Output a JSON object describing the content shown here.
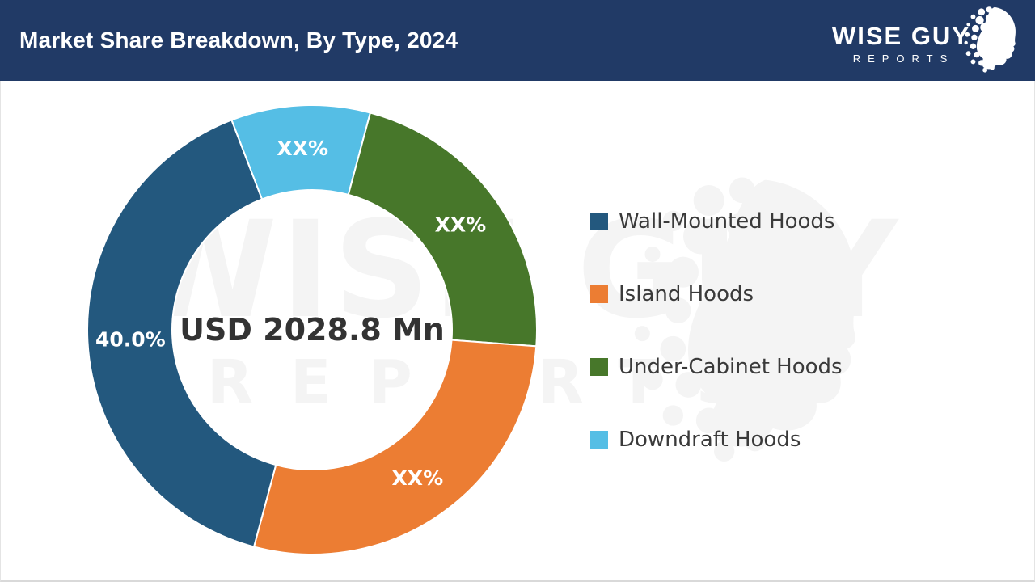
{
  "header": {
    "title": "Market Share Breakdown, By Type, 2024",
    "logo": {
      "line1": "WISE GUY",
      "line2": "REPORTS"
    }
  },
  "watermark": {
    "line1": "WISE GUY",
    "line2": "REPORTS"
  },
  "chart_data": {
    "type": "pie",
    "subtype": "donut",
    "title": "Market Share Breakdown, By Type, 2024",
    "center_label": "USD 2028.8 Mn",
    "start_angle_deg": -21,
    "legend_position": "right",
    "slices": [
      {
        "name": "Wall-Mounted Hoods",
        "value_pct_est": 40.0,
        "display_label": "40.0%",
        "color": "#23587E"
      },
      {
        "name": "Island Hoods",
        "value_pct_est": 28.0,
        "display_label": "XX%",
        "color": "#EC7D33"
      },
      {
        "name": "Under-Cabinet Hoods",
        "value_pct_est": 22.0,
        "display_label": "XX%",
        "color": "#47772A"
      },
      {
        "name": "Downdraft Hoods",
        "value_pct_est": 10.0,
        "display_label": "XX%",
        "color": "#55BEE5"
      }
    ]
  },
  "colors": {
    "header_bg": "#213A66",
    "legend_text": "#3A3A3A",
    "center_text": "#333333",
    "watermark": "#F4F4F4",
    "bottom_border": "#D9D9D9"
  }
}
